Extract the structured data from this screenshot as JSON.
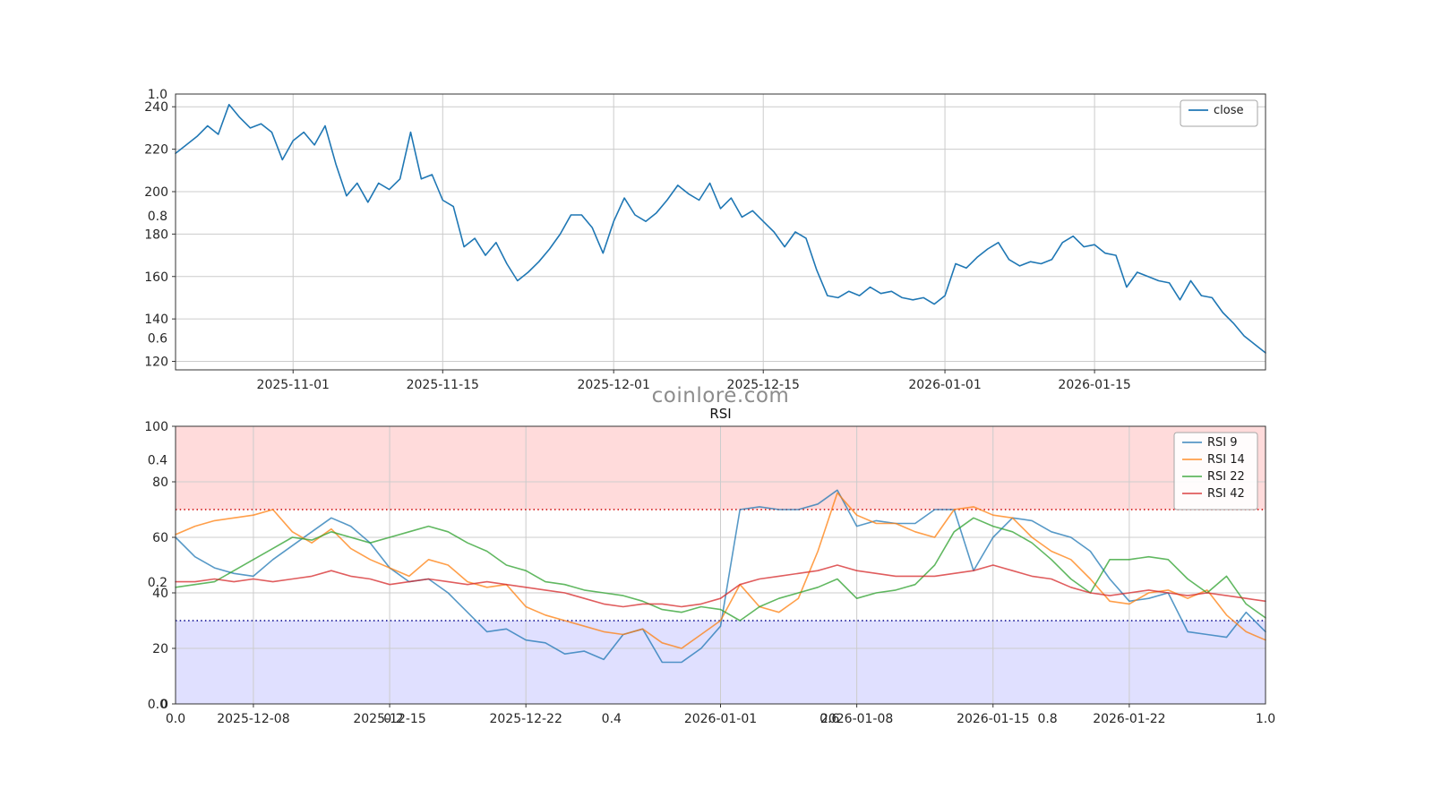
{
  "watermark": "coinlore.com",
  "overlay_axis": {
    "left_ticks": [
      "1.0",
      "0.8",
      "0.6",
      "0.4",
      "0.2",
      "0.0"
    ],
    "bottom_ticks": [
      "0.0",
      "0.2",
      "0.4",
      "0.6",
      "0.8",
      "1.0"
    ]
  },
  "chart_data": [
    {
      "type": "line",
      "title": "",
      "xlabel": "",
      "ylabel": "",
      "xlim": [
        0,
        102
      ],
      "ylim": [
        116,
        246
      ],
      "yticks": [
        120,
        140,
        160,
        180,
        200,
        220,
        240
      ],
      "xticks": [
        {
          "pos": 11,
          "label": "2025-11-01"
        },
        {
          "pos": 25,
          "label": "2025-11-15"
        },
        {
          "pos": 41,
          "label": "2025-12-01"
        },
        {
          "pos": 55,
          "label": "2025-12-15"
        },
        {
          "pos": 72,
          "label": "2026-01-01"
        },
        {
          "pos": 86,
          "label": "2026-01-15"
        }
      ],
      "grid": true,
      "legend_position": "upper right",
      "series": [
        {
          "name": "close",
          "color": "#1f77b4",
          "opacity": 1,
          "values": [
            218,
            222,
            226,
            231,
            227,
            241,
            235,
            230,
            232,
            228,
            215,
            224,
            228,
            222,
            231,
            213,
            198,
            204,
            195,
            204,
            201,
            206,
            228,
            206,
            208,
            196,
            193,
            174,
            178,
            170,
            176,
            166,
            158,
            162,
            167,
            173,
            180,
            189,
            189,
            183,
            171,
            186,
            197,
            189,
            186,
            190,
            196,
            203,
            199,
            196,
            204,
            192,
            197,
            188,
            191,
            186,
            181,
            174,
            181,
            178,
            163,
            151,
            150,
            153,
            151,
            155,
            152,
            153,
            150,
            149,
            150,
            147,
            151,
            166,
            164,
            169,
            173,
            176,
            168,
            165,
            167,
            166,
            168,
            176,
            179,
            174,
            175,
            171,
            170,
            155,
            162,
            160,
            158,
            157,
            149,
            158,
            151,
            150,
            143,
            138,
            132,
            128,
            124
          ]
        }
      ]
    },
    {
      "type": "line",
      "title": "RSI",
      "xlabel": "",
      "ylabel": "",
      "xlim": [
        0,
        56
      ],
      "ylim": [
        0,
        100
      ],
      "yticks": [
        0,
        20,
        40,
        60,
        80,
        100
      ],
      "xticks": [
        {
          "pos": 4,
          "label": "2025-12-08"
        },
        {
          "pos": 11,
          "label": "2025-12-15"
        },
        {
          "pos": 18,
          "label": "2025-12-22"
        },
        {
          "pos": 28,
          "label": "2026-01-01"
        },
        {
          "pos": 35,
          "label": "2026-01-08"
        },
        {
          "pos": 42,
          "label": "2026-01-15"
        },
        {
          "pos": 49,
          "label": "2026-01-22"
        }
      ],
      "grid": true,
      "legend_position": "upper right",
      "bands": [
        {
          "from": 70,
          "to": 100,
          "color": "rgba(255,0,0,0.14)",
          "name": "overbought-band"
        },
        {
          "from": 0,
          "to": 30,
          "color": "rgba(0,0,255,0.12)",
          "name": "oversold-band"
        }
      ],
      "hlines": [
        {
          "y": 70,
          "color": "#cc0000"
        },
        {
          "y": 30,
          "color": "#00008b"
        }
      ],
      "series": [
        {
          "name": "RSI 9",
          "color": "#1f77b4",
          "opacity": 0.75,
          "values": [
            60,
            53,
            49,
            47,
            46,
            52,
            57,
            62,
            67,
            64,
            58,
            49,
            44,
            45,
            40,
            33,
            26,
            27,
            23,
            22,
            18,
            19,
            16,
            25,
            27,
            15,
            15,
            20,
            28,
            70,
            71,
            70,
            70,
            72,
            77,
            64,
            66,
            65,
            65,
            70,
            70,
            48,
            60,
            67,
            66,
            62,
            60,
            55,
            45,
            37,
            38,
            40,
            26,
            25,
            24,
            33,
            26
          ]
        },
        {
          "name": "RSI 14",
          "color": "#ff7f0e",
          "opacity": 0.75,
          "values": [
            61,
            64,
            66,
            67,
            68,
            70,
            62,
            58,
            63,
            56,
            52,
            49,
            46,
            52,
            50,
            44,
            42,
            43,
            35,
            32,
            30,
            28,
            26,
            25,
            27,
            22,
            20,
            25,
            30,
            43,
            35,
            33,
            38,
            55,
            76,
            68,
            65,
            65,
            62,
            60,
            70,
            71,
            68,
            67,
            60,
            55,
            52,
            45,
            37,
            36,
            40,
            41,
            38,
            41,
            32,
            26,
            23
          ]
        },
        {
          "name": "RSI 22",
          "color": "#2ca02c",
          "opacity": 0.75,
          "values": [
            42,
            43,
            44,
            48,
            52,
            56,
            60,
            59,
            62,
            60,
            58,
            60,
            62,
            64,
            62,
            58,
            55,
            50,
            48,
            44,
            43,
            41,
            40,
            39,
            37,
            34,
            33,
            35,
            34,
            30,
            35,
            38,
            40,
            42,
            45,
            38,
            40,
            41,
            43,
            50,
            62,
            67,
            64,
            62,
            58,
            52,
            45,
            40,
            52,
            52,
            53,
            52,
            45,
            40,
            46,
            36,
            31
          ]
        },
        {
          "name": "RSI 42",
          "color": "#d62728",
          "opacity": 0.75,
          "values": [
            44,
            44,
            45,
            44,
            45,
            44,
            45,
            46,
            48,
            46,
            45,
            43,
            44,
            45,
            44,
            43,
            44,
            43,
            42,
            41,
            40,
            38,
            36,
            35,
            36,
            36,
            35,
            36,
            38,
            43,
            45,
            46,
            47,
            48,
            50,
            48,
            47,
            46,
            46,
            46,
            47,
            48,
            50,
            48,
            46,
            45,
            42,
            40,
            39,
            40,
            41,
            40,
            39,
            40,
            39,
            38,
            37
          ]
        }
      ]
    }
  ]
}
